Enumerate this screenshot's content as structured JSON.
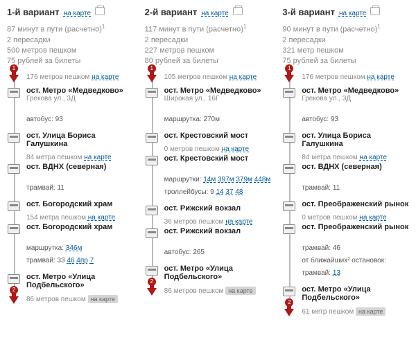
{
  "colors": {
    "accent": "#b01818",
    "link": "#005a9c",
    "muted": "#888",
    "text": "#333",
    "bg": "#ffffff"
  },
  "ui": {
    "map_label": "на карте"
  },
  "variants": [
    {
      "title": "1-й вариант",
      "summary": [
        "87 минут в пути (расчетно)",
        "2 пересадки",
        "500 метров пешком",
        "75 рублей за билеты"
      ],
      "start_badge": "1",
      "start_walk": "176 метров пешком",
      "start_stop": "ост. Метро «Медведково»",
      "start_addr": "Грекова ул., 3Д",
      "blocks": [
        {
          "transport": [
            [
              "автобус: ",
              "93"
            ]
          ],
          "stop1": "ост. Улица Бориса Галушкина",
          "walk": "84 метра пешком",
          "stop2": "ост. ВДНХ (северная)"
        },
        {
          "transport": [
            [
              "трамвай: ",
              "11"
            ]
          ],
          "stop1": "ост. Богородский храм",
          "walk": "154 метра пешком",
          "stop2": "ост. Богородский храм"
        },
        {
          "transport": [
            [
              "маршрутка: ",
              {
                "links": [
                  "346м"
                ]
              }
            ],
            [
              "трамвай: ",
              {
                "nums": "33 ",
                "links": [
                  "46",
                  "4пр",
                  "7"
                ]
              }
            ]
          ],
          "stop1": "ост. Метро «Улица Подбельского»"
        }
      ],
      "end_walk": "86 метров пешком",
      "end_badge": "2"
    },
    {
      "title": "2-й вариант",
      "summary": [
        "117 минут в пути (расчетно)",
        "2 пересадки",
        "227 метров пешком",
        "80 рублей за билеты"
      ],
      "start_badge": "1",
      "start_walk": "105 метров пешком",
      "start_stop": "ост. Метро «Медведково»",
      "start_addr": "Широкая ул., 16Г",
      "blocks": [
        {
          "transport": [
            [
              "маршрутка: ",
              "270м"
            ]
          ],
          "stop1": "ост. Крестовский мост",
          "walk": "0 метров пешком",
          "stop2": "ост. Крестовский мост"
        },
        {
          "transport": [
            [
              "маршрутки: ",
              {
                "links": [
                  "14м",
                  "397м",
                  "379м",
                  "448м"
                ]
              }
            ],
            [
              "троллейбусы: ",
              {
                "nums": "9 ",
                "links": [
                  "14",
                  "37",
                  "48"
                ]
              }
            ]
          ],
          "stop1": "ост. Рижский вокзал",
          "walk": "36 метров пешком",
          "stop2": "ост. Рижский вокзал"
        },
        {
          "transport": [
            [
              "автобус: ",
              "265"
            ]
          ],
          "stop1": "ост. Метро «Улица Подбельского»"
        }
      ],
      "end_walk": "86 метров пешком",
      "end_badge": "2"
    },
    {
      "title": "3-й вариант",
      "summary": [
        "90 минут в пути (расчетно)",
        "2 пересадки",
        "321 метр пешком",
        "75 рублей за билеты"
      ],
      "start_badge": "1",
      "start_walk": "176 метров пешком",
      "start_stop": "ост. Метро «Медведково»",
      "start_addr": "Грекова ул., 3Д",
      "blocks": [
        {
          "transport": [
            [
              "автобус: ",
              "93"
            ]
          ],
          "stop1": "ост. Улица Бориса Галушкина",
          "walk": "84 метра пешком",
          "stop2": "ост. ВДНХ (северная)"
        },
        {
          "transport": [
            [
              "трамвай: ",
              "11"
            ]
          ],
          "stop1": "ост. Преображенский рынок",
          "walk": "0 метров пешком",
          "stop2": "ост. Преображенский рынок"
        },
        {
          "transport": [
            [
              "трамвай: ",
              "46"
            ]
          ],
          "extra": "от ближайших² остановок:",
          "extra_transport": [
            [
              "трамвай: ",
              {
                "links": [
                  "13"
                ]
              }
            ]
          ],
          "stop1": "ост. Метро «Улица Подбельского»"
        }
      ],
      "end_walk": "61 метр пешком",
      "end_badge": "2"
    }
  ]
}
